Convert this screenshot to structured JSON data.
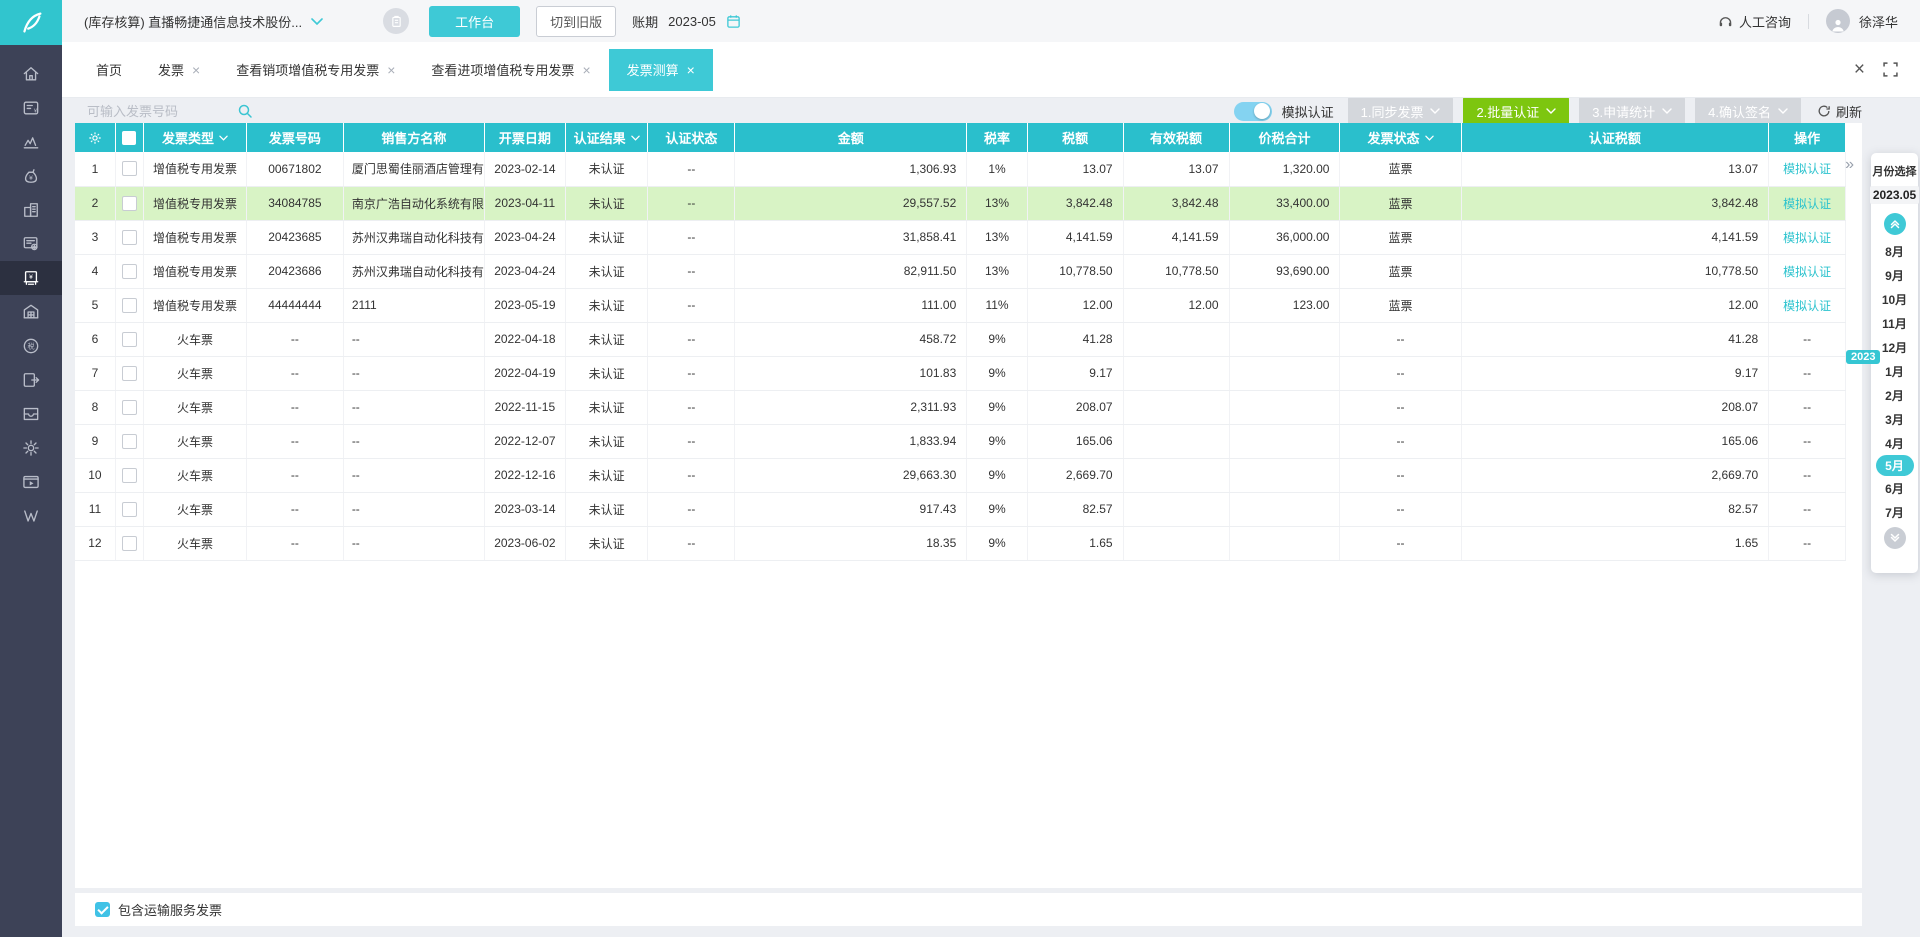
{
  "header": {
    "company_selector": "(库存核算) 直播畅捷通信息技术股份...",
    "workbench_button": "工作台",
    "old_version_button": "切到旧版",
    "period_label": "账期",
    "period_value": "2023-05",
    "support_label": "人工咨询",
    "username": "徐泽华"
  },
  "tabs": {
    "items": [
      {
        "label": "首页",
        "closable": false,
        "active": false
      },
      {
        "label": "发票",
        "closable": true,
        "active": false
      },
      {
        "label": "查看销项增值税专用发票",
        "closable": true,
        "active": false
      },
      {
        "label": "查看进项增值税专用发票",
        "closable": true,
        "active": false
      },
      {
        "label": "发票测算",
        "closable": true,
        "active": true
      }
    ]
  },
  "sidebar": {
    "items": [
      {
        "icon": "home-icon",
        "active": false
      },
      {
        "icon": "voucher-icon",
        "active": false
      },
      {
        "icon": "ledger-chart-icon",
        "active": false
      },
      {
        "icon": "funds-icon",
        "active": false
      },
      {
        "icon": "assets-icon",
        "active": false
      },
      {
        "icon": "reports-icon",
        "active": false
      },
      {
        "icon": "invoice-icon",
        "active": true
      },
      {
        "icon": "inventory-icon",
        "active": false
      },
      {
        "icon": "tax-icon",
        "active": false
      },
      {
        "icon": "closing-icon",
        "active": false
      },
      {
        "icon": "archive-icon",
        "active": false
      },
      {
        "icon": "settings-icon",
        "active": false
      },
      {
        "icon": "tutorial-video-icon",
        "active": false
      },
      {
        "icon": "version-icon",
        "active": false
      }
    ]
  },
  "toolbar": {
    "search_placeholder": "可输入发票号码",
    "toggle_label": "模拟认证",
    "toggle_on": true,
    "buttons": [
      {
        "label": "1.同步发票",
        "style": "gray",
        "dropdown": true
      },
      {
        "label": "2.批量认证",
        "style": "green",
        "dropdown": true
      },
      {
        "label": "3.申请统计",
        "style": "gray",
        "dropdown": true
      },
      {
        "label": "4.确认签名",
        "style": "gray",
        "dropdown": true
      }
    ],
    "refresh_label": "刷新"
  },
  "table": {
    "columns": [
      {
        "label": "发票类型",
        "sort": true
      },
      {
        "label": "发票号码",
        "sort": false
      },
      {
        "label": "销售方名称",
        "sort": false
      },
      {
        "label": "开票日期",
        "sort": false
      },
      {
        "label": "认证结果",
        "sort": true
      },
      {
        "label": "认证状态",
        "sort": false
      },
      {
        "label": "金额",
        "sort": false
      },
      {
        "label": "税率",
        "sort": false
      },
      {
        "label": "税额",
        "sort": false
      },
      {
        "label": "有效税额",
        "sort": false
      },
      {
        "label": "价税合计",
        "sort": false
      },
      {
        "label": "发票状态",
        "sort": true
      },
      {
        "label": "认证税额",
        "sort": false
      },
      {
        "label": "操作",
        "sort": false
      }
    ],
    "rows": [
      {
        "type": "增值税专用发票",
        "invoice_no": "00671802",
        "seller": "厦门思蜀佳丽酒店管理有限公司",
        "date": "2023-02-14",
        "result": "未认证",
        "status": "--",
        "amount": "1,306.93",
        "rate": "1%",
        "tax": "13.07",
        "valid_tax": "13.07",
        "total": "1,320.00",
        "invoice_status": "蓝票",
        "cert_tax": "13.07",
        "operation": "模拟认证",
        "highlight": false
      },
      {
        "type": "增值税专用发票",
        "invoice_no": "34084785",
        "seller": "南京广浩自动化系统有限责任公司",
        "date": "2023-04-11",
        "result": "未认证",
        "status": "--",
        "amount": "29,557.52",
        "rate": "13%",
        "tax": "3,842.48",
        "valid_tax": "3,842.48",
        "total": "33,400.00",
        "invoice_status": "蓝票",
        "cert_tax": "3,842.48",
        "operation": "模拟认证",
        "highlight": true
      },
      {
        "type": "增值税专用发票",
        "invoice_no": "20423685",
        "seller": "苏州汉弗瑞自动化科技有限公司",
        "date": "2023-04-24",
        "result": "未认证",
        "status": "--",
        "amount": "31,858.41",
        "rate": "13%",
        "tax": "4,141.59",
        "valid_tax": "4,141.59",
        "total": "36,000.00",
        "invoice_status": "蓝票",
        "cert_tax": "4,141.59",
        "operation": "模拟认证",
        "highlight": false
      },
      {
        "type": "增值税专用发票",
        "invoice_no": "20423686",
        "seller": "苏州汉弗瑞自动化科技有限公司",
        "date": "2023-04-24",
        "result": "未认证",
        "status": "--",
        "amount": "82,911.50",
        "rate": "13%",
        "tax": "10,778.50",
        "valid_tax": "10,778.50",
        "total": "93,690.00",
        "invoice_status": "蓝票",
        "cert_tax": "10,778.50",
        "operation": "模拟认证",
        "highlight": false
      },
      {
        "type": "增值税专用发票",
        "invoice_no": "44444444",
        "seller": "2111",
        "date": "2023-05-19",
        "result": "未认证",
        "status": "--",
        "amount": "111.00",
        "rate": "11%",
        "tax": "12.00",
        "valid_tax": "12.00",
        "total": "123.00",
        "invoice_status": "蓝票",
        "cert_tax": "12.00",
        "operation": "模拟认证",
        "highlight": false
      },
      {
        "type": "火车票",
        "invoice_no": "--",
        "seller": "--",
        "date": "2022-04-18",
        "result": "未认证",
        "status": "--",
        "amount": "458.72",
        "rate": "9%",
        "tax": "41.28",
        "valid_tax": "",
        "total": "",
        "invoice_status": "--",
        "cert_tax": "41.28",
        "operation": "--",
        "highlight": false
      },
      {
        "type": "火车票",
        "invoice_no": "--",
        "seller": "--",
        "date": "2022-04-19",
        "result": "未认证",
        "status": "--",
        "amount": "101.83",
        "rate": "9%",
        "tax": "9.17",
        "valid_tax": "",
        "total": "",
        "invoice_status": "--",
        "cert_tax": "9.17",
        "operation": "--",
        "highlight": false
      },
      {
        "type": "火车票",
        "invoice_no": "--",
        "seller": "--",
        "date": "2022-11-15",
        "result": "未认证",
        "status": "--",
        "amount": "2,311.93",
        "rate": "9%",
        "tax": "208.07",
        "valid_tax": "",
        "total": "",
        "invoice_status": "--",
        "cert_tax": "208.07",
        "operation": "--",
        "highlight": false
      },
      {
        "type": "火车票",
        "invoice_no": "--",
        "seller": "--",
        "date": "2022-12-07",
        "result": "未认证",
        "status": "--",
        "amount": "1,833.94",
        "rate": "9%",
        "tax": "165.06",
        "valid_tax": "",
        "total": "",
        "invoice_status": "--",
        "cert_tax": "165.06",
        "operation": "--",
        "highlight": false
      },
      {
        "type": "火车票",
        "invoice_no": "--",
        "seller": "--",
        "date": "2022-12-16",
        "result": "未认证",
        "status": "--",
        "amount": "29,663.30",
        "rate": "9%",
        "tax": "2,669.70",
        "valid_tax": "",
        "total": "",
        "invoice_status": "--",
        "cert_tax": "2,669.70",
        "operation": "--",
        "highlight": false
      },
      {
        "type": "火车票",
        "invoice_no": "--",
        "seller": "--",
        "date": "2023-03-14",
        "result": "未认证",
        "status": "--",
        "amount": "917.43",
        "rate": "9%",
        "tax": "82.57",
        "valid_tax": "",
        "total": "",
        "invoice_status": "--",
        "cert_tax": "82.57",
        "operation": "--",
        "highlight": false
      },
      {
        "type": "火车票",
        "invoice_no": "--",
        "seller": "--",
        "date": "2023-06-02",
        "result": "未认证",
        "status": "--",
        "amount": "18.35",
        "rate": "9%",
        "tax": "1.65",
        "valid_tax": "",
        "total": "",
        "invoice_status": "--",
        "cert_tax": "1.65",
        "operation": "--",
        "highlight": false
      }
    ]
  },
  "month_panel": {
    "title": "月份选择",
    "current": "2023.05",
    "year_badge": "2023",
    "months": [
      "8月",
      "9月",
      "10月",
      "11月",
      "12月",
      "1月",
      "2月",
      "3月",
      "4月",
      "5月",
      "6月",
      "7月"
    ],
    "selected": "5月"
  },
  "footer": {
    "checkbox_label": "包含运输服务发票",
    "checked": true
  },
  "colors": {
    "accent_teal": "#2abfcc",
    "accent_green": "#7dc60f",
    "highlight_row": "#d8f3c5",
    "sidebar_bg": "#3d4257",
    "link_teal": "#2cc3ce"
  }
}
